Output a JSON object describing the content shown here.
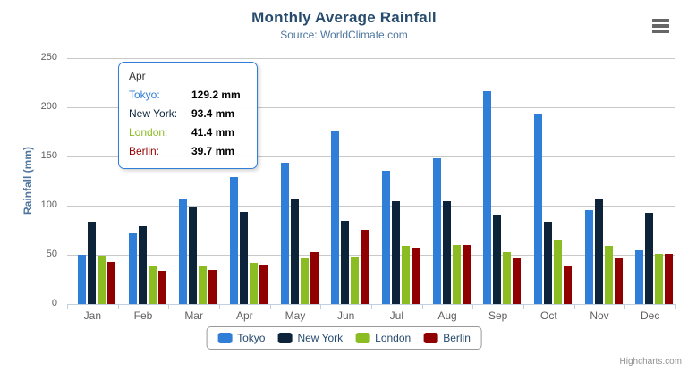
{
  "header": {
    "title": "Monthly Average Rainfall",
    "subtitle": "Source: WorldClimate.com"
  },
  "yaxis": {
    "title": "Rainfall (mm)",
    "ticks": [
      0,
      50,
      100,
      150,
      200,
      250
    ]
  },
  "tooltip": {
    "header": "Apr",
    "rows": [
      {
        "label": "Tokyo:",
        "value": "129.2 mm",
        "color": "#2f7ed8"
      },
      {
        "label": "New York:",
        "value": "93.4 mm",
        "color": "#0d233a"
      },
      {
        "label": "London:",
        "value": "41.4 mm",
        "color": "#8bbc21"
      },
      {
        "label": "Berlin:",
        "value": "39.7 mm",
        "color": "#910000"
      }
    ]
  },
  "legend": {
    "items": [
      "Tokyo",
      "New York",
      "London",
      "Berlin"
    ]
  },
  "credits": "Highcharts.com",
  "colors": {
    "tokyo": "#2f7ed8",
    "new_york": "#0d233a",
    "london": "#8bbc21",
    "berlin": "#910000",
    "gridline": "#c9c9c9",
    "axis_line": "#c0d0e0",
    "title_text": "#274b6d",
    "subtitle_text": "#4d759e",
    "axis_label_text": "#606060",
    "tooltip_border": "#2f7ed8",
    "credits_text": "#909090"
  },
  "chart_data": {
    "type": "bar",
    "title": "Monthly Average Rainfall",
    "subtitle": "Source: WorldClimate.com",
    "xlabel": "",
    "ylabel": "Rainfall (mm)",
    "ylim": [
      0,
      250
    ],
    "grid": true,
    "legend_position": "bottom",
    "categories": [
      "Jan",
      "Feb",
      "Mar",
      "Apr",
      "May",
      "Jun",
      "Jul",
      "Aug",
      "Sep",
      "Oct",
      "Nov",
      "Dec"
    ],
    "series": [
      {
        "name": "Tokyo",
        "color": "#2f7ed8",
        "values": [
          49.9,
          71.5,
          106.4,
          129.2,
          144.0,
          176.0,
          135.6,
          148.5,
          216.4,
          194.1,
          95.6,
          54.4
        ]
      },
      {
        "name": "New York",
        "color": "#0d233a",
        "values": [
          83.6,
          78.8,
          98.5,
          93.4,
          106.0,
          84.5,
          105.0,
          104.3,
          91.2,
          83.5,
          106.6,
          92.3
        ]
      },
      {
        "name": "London",
        "color": "#8bbc21",
        "values": [
          48.9,
          38.8,
          39.3,
          41.4,
          47.0,
          48.3,
          59.0,
          59.6,
          52.4,
          65.2,
          59.3,
          51.2
        ]
      },
      {
        "name": "Berlin",
        "color": "#910000",
        "values": [
          42.4,
          33.2,
          34.5,
          39.7,
          52.6,
          75.5,
          57.4,
          60.4,
          47.6,
          39.1,
          46.8,
          51.1
        ]
      }
    ]
  }
}
